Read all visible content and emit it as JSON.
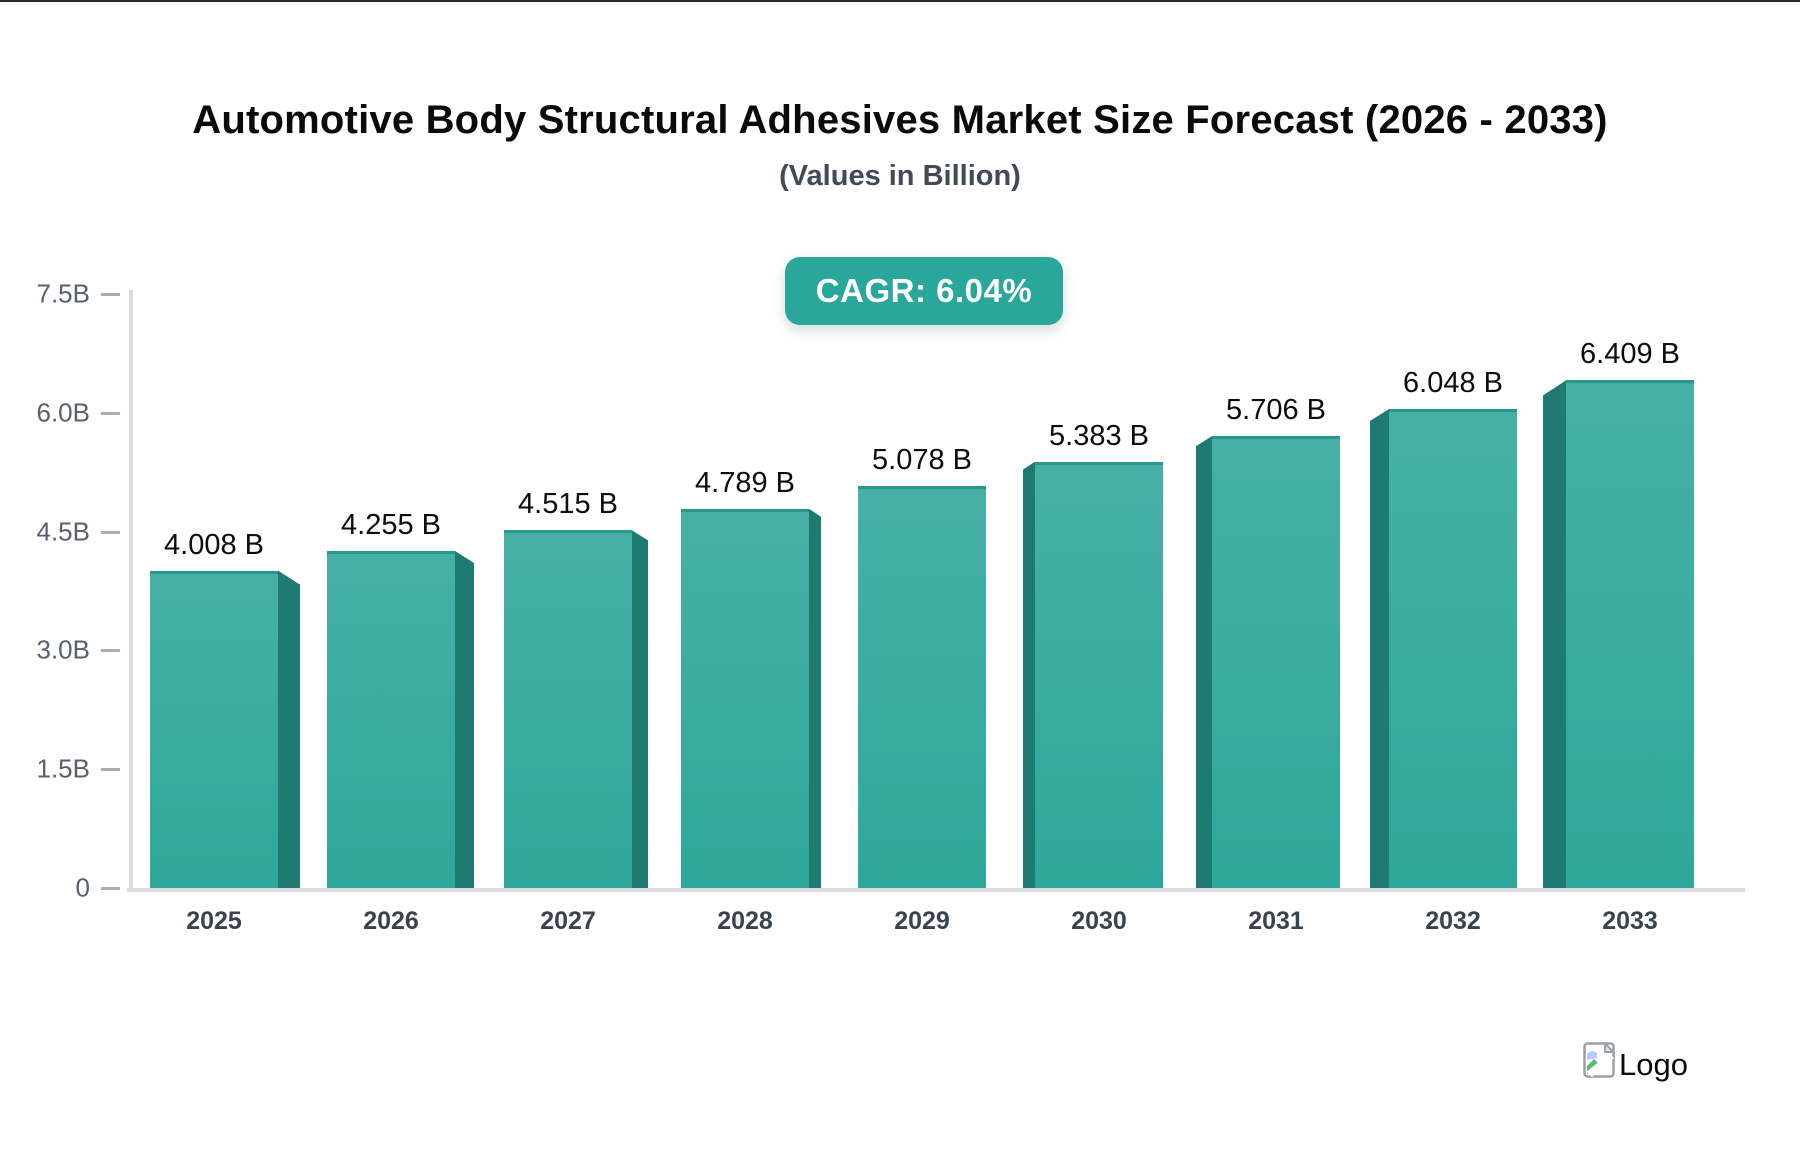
{
  "header": {
    "title": "Automotive Body Structural Adhesives Market Size Forecast (2026 - 2033)",
    "subtitle": "(Values in Billion)"
  },
  "badge": {
    "label": "CAGR: 6.04%",
    "color": "#2aa79b"
  },
  "chart_data": {
    "type": "bar",
    "title": "Automotive Body Structural Adhesives Market Size Forecast (2026 - 2033)",
    "subtitle": "(Values in Billion)",
    "categories": [
      "2025",
      "2026",
      "2027",
      "2028",
      "2029",
      "2030",
      "2031",
      "2032",
      "2033"
    ],
    "values": [
      4.008,
      4.255,
      4.515,
      4.789,
      5.078,
      5.383,
      5.706,
      6.048,
      6.409
    ],
    "value_labels": [
      "4.008 B",
      "4.255 B",
      "4.515 B",
      "4.789 B",
      "5.078 B",
      "5.383 B",
      "5.706 B",
      "6.048 B",
      "6.409 B"
    ],
    "xlabel": "",
    "ylabel": "",
    "ylim": [
      0,
      7.5
    ],
    "yticks": [
      {
        "label": "7.5B",
        "value": 7.5
      },
      {
        "label": "6.0B",
        "value": 6.0
      },
      {
        "label": "4.5B",
        "value": 4.5
      },
      {
        "label": "3.0B",
        "value": 3.0
      },
      {
        "label": "1.5B",
        "value": 1.5
      },
      {
        "label": "0",
        "value": 0
      }
    ],
    "grid": false,
    "legend": false,
    "colors": {
      "bar_front_top": "#47b0a6",
      "bar_front_bottom": "#2ea89a",
      "bar_top_edge": "#2b968c",
      "bar_side": "#1f7a71",
      "axis_line": "#dadce1",
      "tick_dash": "#a7aeb9",
      "tick_label": "#58606e",
      "category_label": "#3a4250",
      "value_label": "#0d0d0d"
    }
  },
  "footer": {
    "logo_alt": "Logo"
  }
}
